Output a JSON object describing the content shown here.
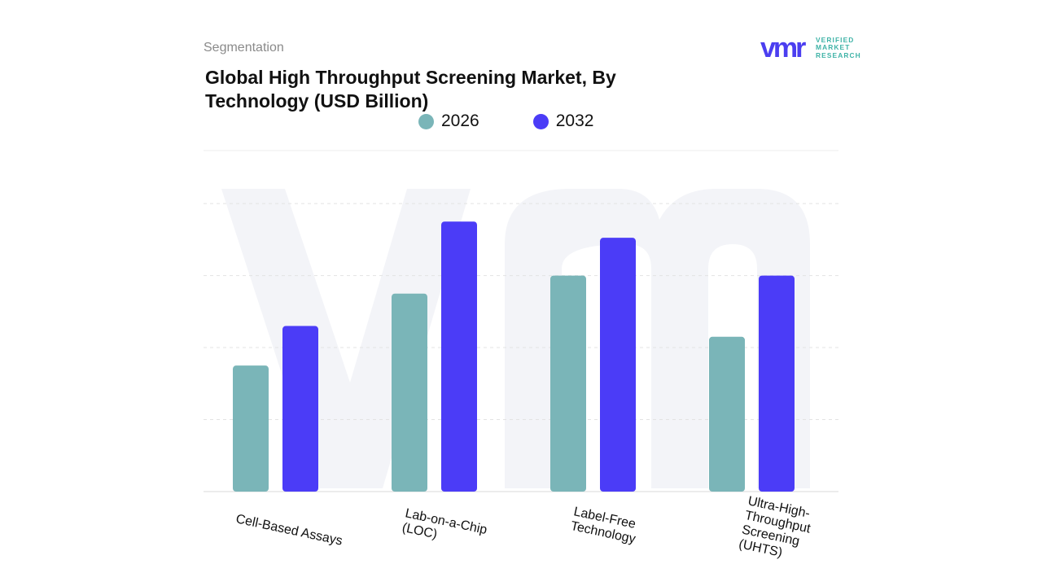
{
  "header": {
    "segment_label": "Segmentation",
    "title": "Global High Throughput Screening Market, By Technology (USD Billion)"
  },
  "logo": {
    "mark": "vmr",
    "line1": "VERIFIED",
    "line2": "MARKET",
    "line3": "RESEARCH",
    "mark_color": "#4b3ef0",
    "text_color": "#3fb3a7"
  },
  "chart_data": {
    "type": "bar",
    "title": "Global High Throughput Screening Market, By Technology (USD Billion)",
    "xlabel": "",
    "ylabel": "",
    "categories": [
      "Cell-Based Assays",
      "Lab-on-a-Chip (LOC)",
      "Label-Free Technology",
      "Ultra-High-Throughput Screening (UHTS)"
    ],
    "series": [
      {
        "name": "2026",
        "color": "#7ab5b8",
        "values": [
          3.5,
          5.5,
          6.0,
          4.3
        ]
      },
      {
        "name": "2032",
        "color": "#4b3cf7",
        "values": [
          4.6,
          7.5,
          7.05,
          6.0
        ]
      }
    ],
    "ylim": [
      0,
      8.5
    ],
    "grid": true,
    "legend_position": "top-center"
  }
}
